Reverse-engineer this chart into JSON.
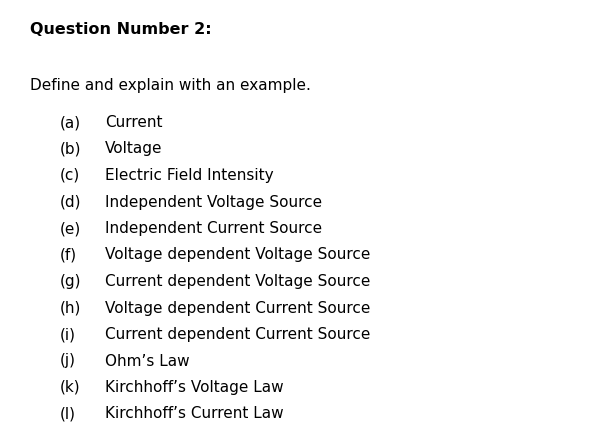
{
  "background_color": "#ffffff",
  "title": "Question Number 2:",
  "subtitle": "Define and explain with an example.",
  "labels": [
    "(a)",
    "(b)",
    "(c)",
    "(d)",
    "(e)",
    "(f)",
    "(g)",
    "(h)",
    "(i)",
    "(j)",
    "(k)",
    "(l)"
  ],
  "items": [
    "Current",
    "Voltage",
    "Electric Field Intensity",
    "Independent Voltage Source",
    "Independent Current Source",
    "Voltage dependent Voltage Source",
    "Current dependent Voltage Source",
    "Voltage dependent Current Source",
    "Current dependent Current Source",
    "Ohm’s Law",
    "Kirchhoff’s Voltage Law",
    "Kirchhoff’s Current Law"
  ],
  "text_color": "#000000",
  "title_fontsize": 11.5,
  "subtitle_fontsize": 11.0,
  "items_fontsize": 11.0
}
